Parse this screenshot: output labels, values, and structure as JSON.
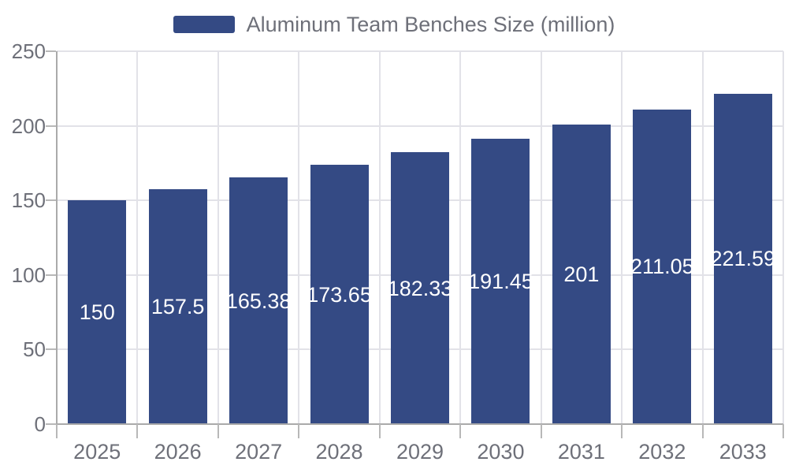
{
  "chart_data": {
    "type": "bar",
    "legend_label": "Aluminum Team Benches Size (million)",
    "legend_position": "top-center",
    "categories": [
      "2025",
      "2026",
      "2027",
      "2028",
      "2029",
      "2030",
      "2031",
      "2032",
      "2033"
    ],
    "values": [
      150,
      157.5,
      165.38,
      173.65,
      182.33,
      191.45,
      201,
      211.05,
      221.59
    ],
    "value_labels": [
      "150",
      "157.5",
      "165.38",
      "173.65",
      "182.33",
      "191.45",
      "201",
      "211.05",
      "221.59"
    ],
    "xlabel": "",
    "ylabel": "",
    "ylim": [
      0,
      250
    ],
    "ytick_step": 50,
    "ytick_labels": [
      "0",
      "50",
      "100",
      "150",
      "200",
      "250"
    ],
    "grid": true,
    "colors": {
      "bar": "#344a84",
      "bar_label": "#ffffff",
      "axis_text": "#6e7079",
      "legend_text": "#6e7079",
      "grid_line": "#e2e2e8",
      "axis_line": "#aaaaaa",
      "tick_line": "#b8b8b8",
      "background": "#ffffff"
    }
  }
}
